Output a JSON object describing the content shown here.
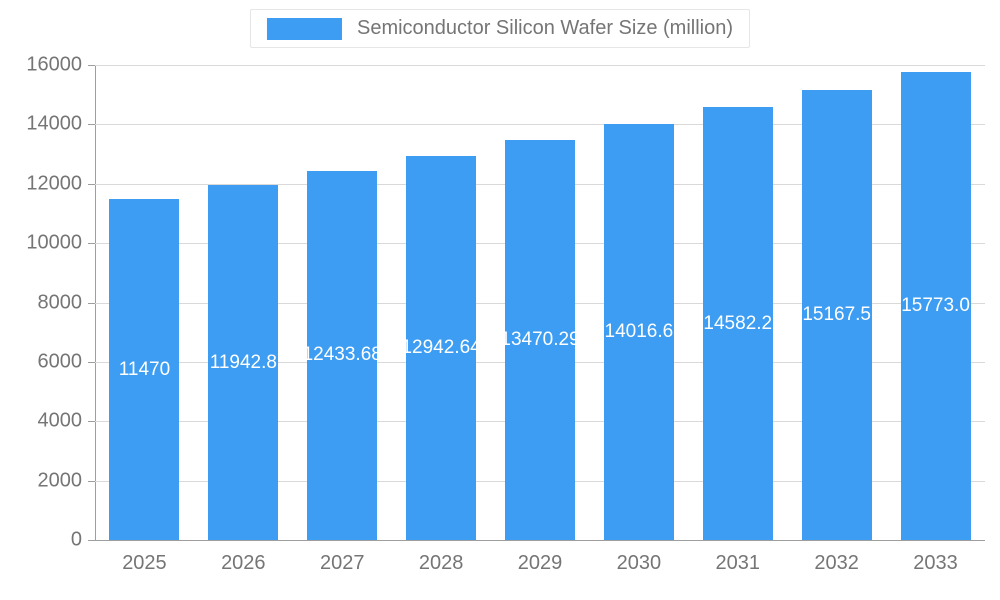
{
  "chart_data": {
    "type": "bar",
    "title": "Semiconductor Silicon Wafer Size (million)",
    "categories": [
      "2025",
      "2026",
      "2027",
      "2028",
      "2029",
      "2030",
      "2031",
      "2032",
      "2033"
    ],
    "values": [
      11470,
      11942.8,
      12433.68,
      12942.64,
      13470.29,
      14016.6,
      14582.2,
      15167.5,
      15773.0
    ],
    "bar_labels": [
      "11470",
      "11942.8",
      "12433.68",
      "12942.64",
      "13470.29",
      "14016.6",
      "14582.2",
      "15167.5",
      "15773.0"
    ],
    "xlabel": "",
    "ylabel": "",
    "ylim": [
      0,
      16000
    ],
    "ytick_step": 2000,
    "ytick_labels": [
      "0",
      "2000",
      "4000",
      "6000",
      "8000",
      "10000",
      "12000",
      "14000",
      "16000"
    ],
    "grid": true,
    "legend_position": "top",
    "legend": {
      "label": "Semiconductor Silicon Wafer Size (million)",
      "swatch_color": "#3d9df3"
    },
    "colors": {
      "bar": "#3d9df3",
      "axis": "#9e9e9e",
      "grid": "#d9d9d9",
      "tick_text": "#757575",
      "bar_label_text": "#ffffff"
    }
  }
}
